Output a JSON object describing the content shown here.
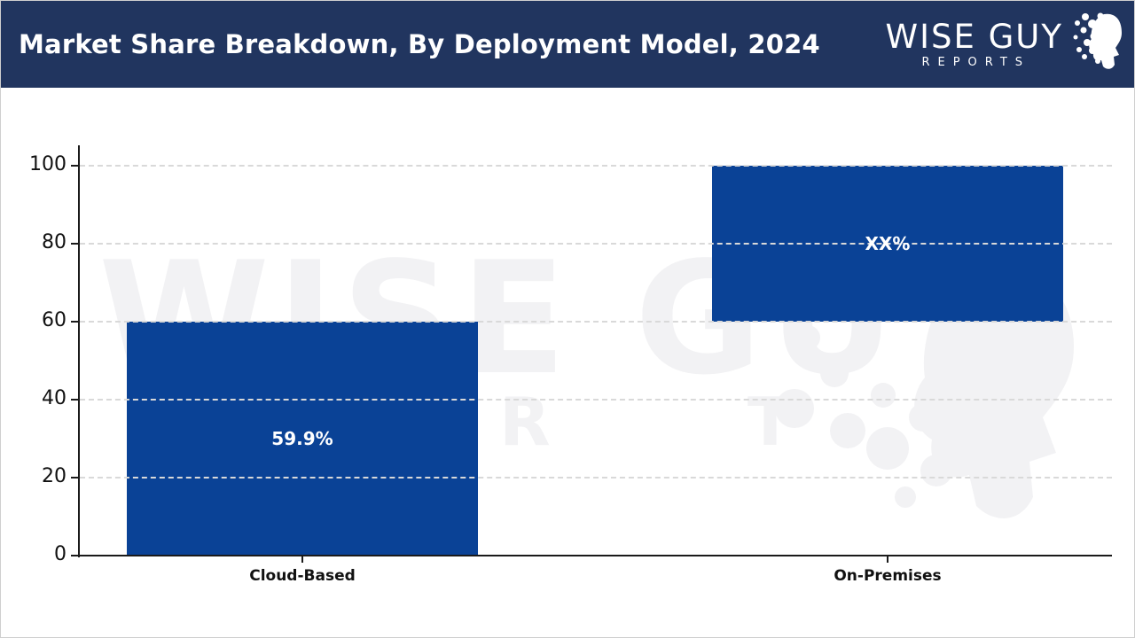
{
  "header": {
    "title": "Market Share Breakdown, By Deployment Model, 2024",
    "bg_color": "#21355f",
    "logo": {
      "line1": "WISE GUY",
      "line2": "REPORTS"
    }
  },
  "watermark": {
    "line1": "WISE GUY",
    "line2": "R T S"
  },
  "chart_data": {
    "type": "bar",
    "title": "Market Share Breakdown, By Deployment Model, 2024",
    "categories": [
      "Cloud-Based",
      "On-Premises"
    ],
    "bars": [
      {
        "category": "Cloud-Based",
        "value": 59.9,
        "label": "59.9%",
        "span": [
          0,
          59.9
        ]
      },
      {
        "category": "On-Premises",
        "value": "XX",
        "label": "XX%",
        "span": [
          60,
          100
        ]
      }
    ],
    "yticks": [
      0,
      20,
      40,
      60,
      80,
      100
    ],
    "ylim": [
      0,
      105
    ],
    "xlabel": "",
    "ylabel": "",
    "grid": "horizontal-dashed",
    "legend": "none",
    "bar_color": "#0a4296",
    "bar_label_color": "#ffffff",
    "axis_color": "#1a1a1a",
    "grid_color": "#d9d9d9",
    "tick_label_color": "#111111"
  }
}
